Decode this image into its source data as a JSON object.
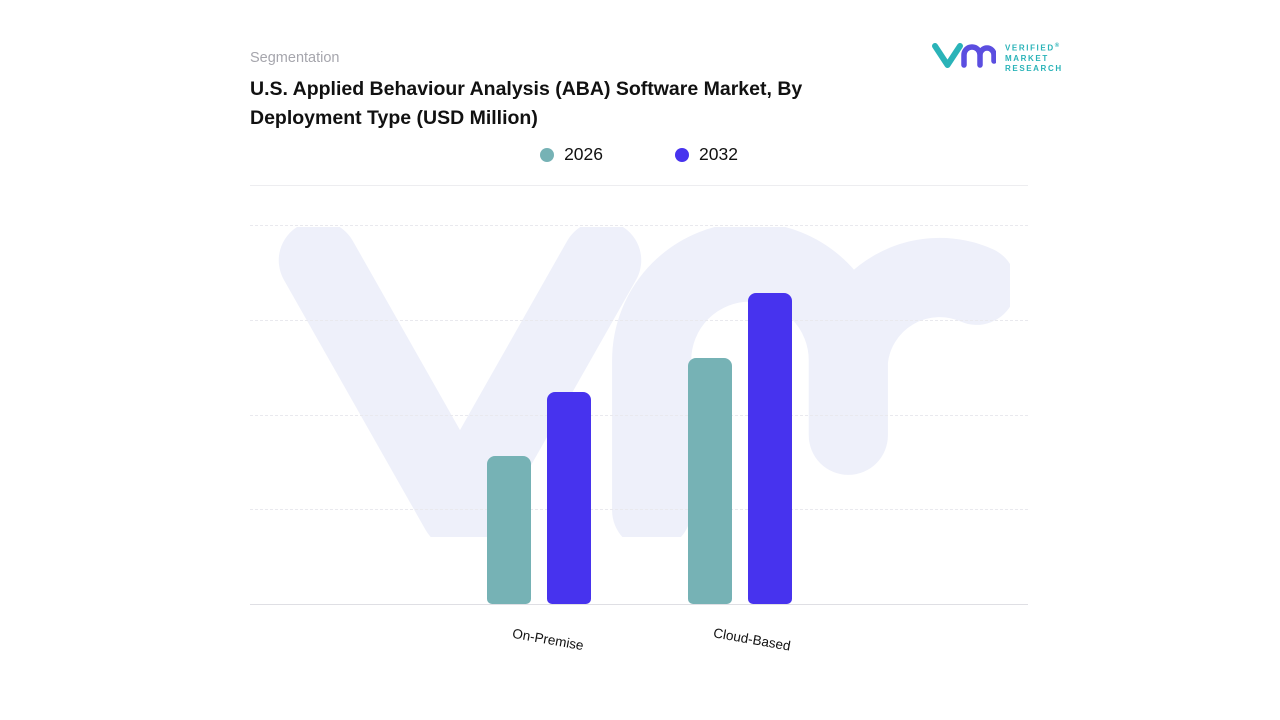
{
  "header": {
    "eyebrow": "Segmentation",
    "title": "U.S. Applied Behaviour Analysis (ABA) Software Market, By Deployment Type (USD Million)"
  },
  "logo": {
    "line1": "VERIFIED",
    "line2": "MARKET",
    "line3": "RESEARCH",
    "registered": "®",
    "teal": "#2ab3b8",
    "purple": "#5b4ee0"
  },
  "chart_data": {
    "type": "bar",
    "categories": [
      "On-Premise",
      "Cloud-Based"
    ],
    "series": [
      {
        "name": "2026",
        "color": "#76b2b5",
        "values": [
          39,
          65
        ]
      },
      {
        "name": "2032",
        "color": "#4733ee",
        "values": [
          56,
          82
        ]
      }
    ],
    "title": "U.S. Applied Behaviour Analysis (ABA) Software Market, By Deployment Type (USD Million)",
    "xlabel": "",
    "ylabel": "",
    "ylim": [
      0,
      100
    ],
    "grid": "dashed-horizontal",
    "legend_position": "top-center",
    "watermark": "Vm",
    "watermark_color": "#eef0fa"
  }
}
